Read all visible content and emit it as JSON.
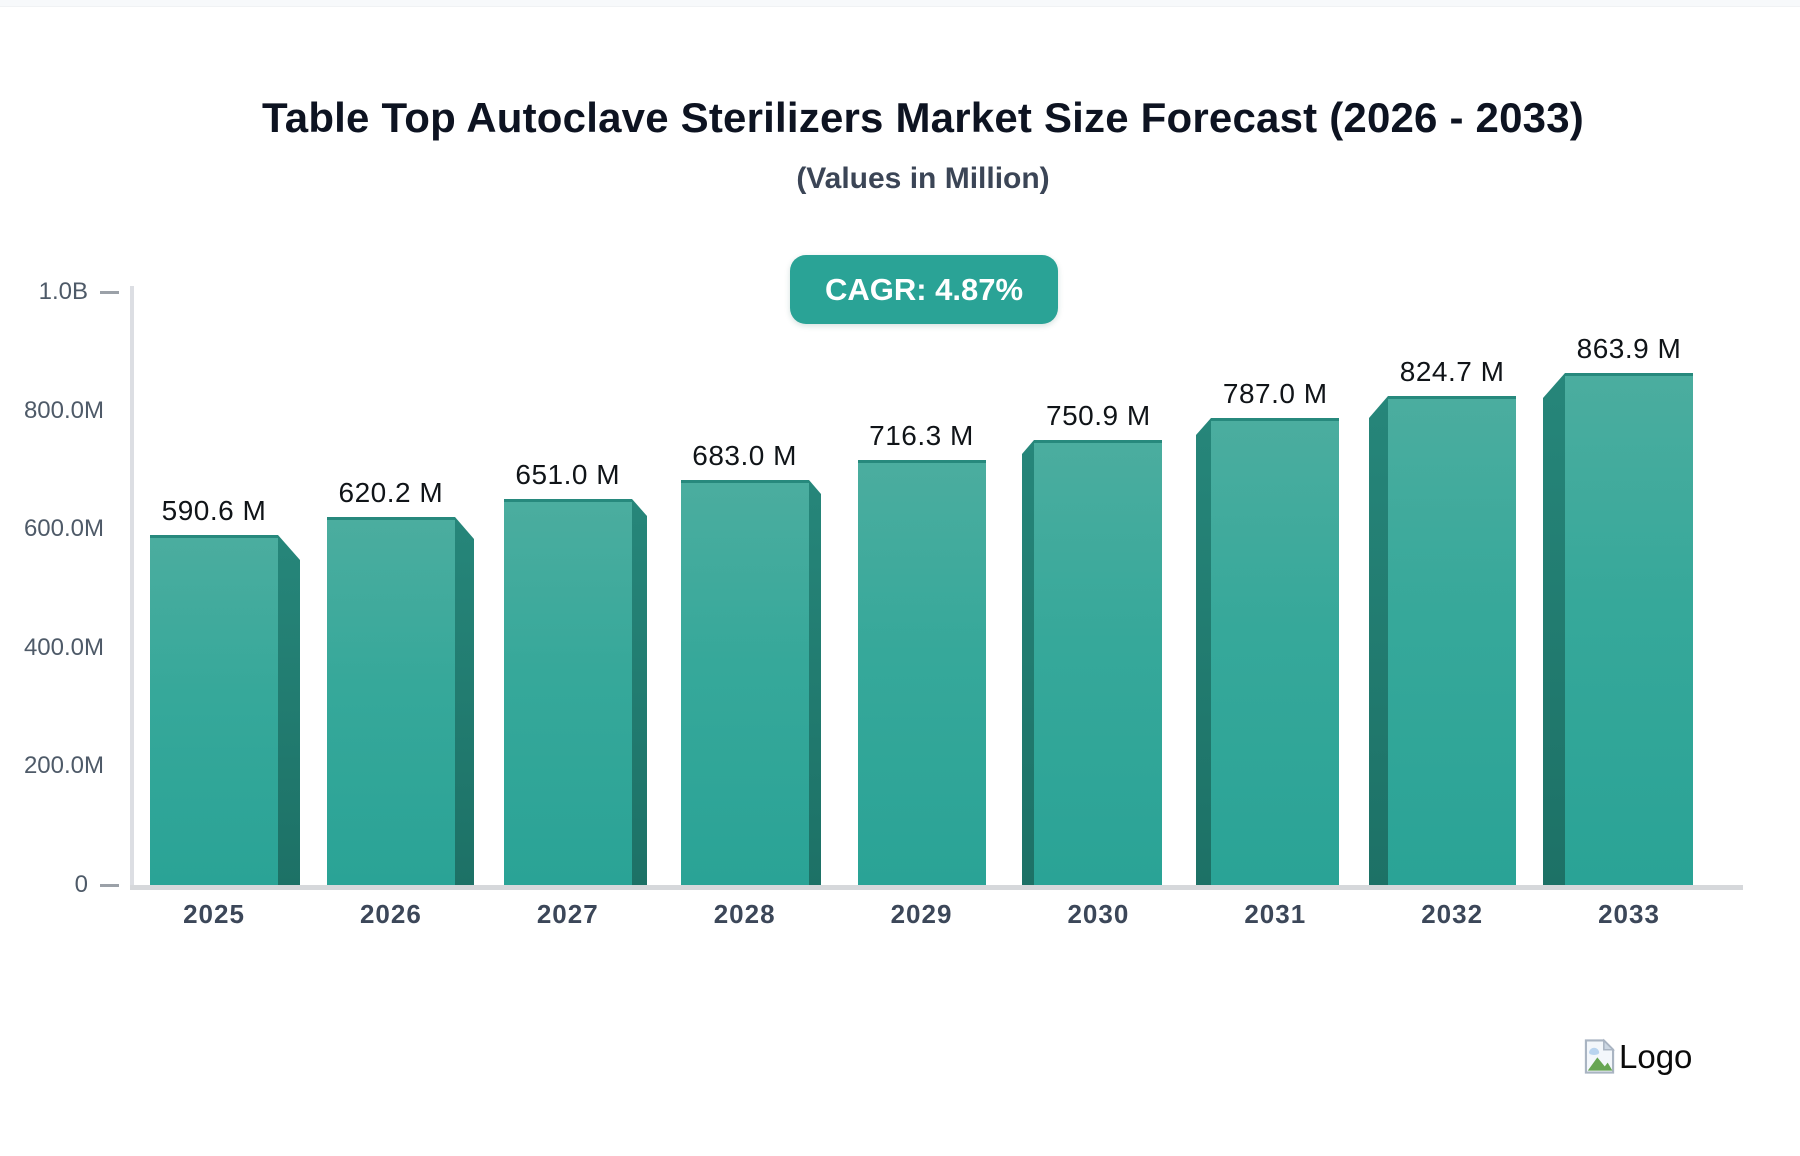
{
  "header": {
    "title": "Table Top Autoclave Sterilizers Market Size Forecast (2026 - 2033)",
    "subtitle": "(Values in Million)",
    "cagr_badge": "CAGR: 4.87%"
  },
  "footer": {
    "logo_text": "Logo"
  },
  "colors": {
    "accent_teal": "#2aa396",
    "bar_front_top": "#4bad9f",
    "bar_front_bottom": "#2aa396",
    "bar_side": "#1f7a70",
    "axis_line": "#d6d8db",
    "y_label": "#4e5a68",
    "x_label": "#3c4759",
    "value_label": "#101418",
    "badge_text": "#ffffff"
  },
  "chart_data": {
    "type": "bar",
    "title": "Table Top Autoclave Sterilizers Market Size Forecast (2026 - 2033)",
    "subtitle": "(Values in Million)",
    "annotation": "CAGR: 4.87%",
    "cagr_percent": 4.87,
    "unit": "Million USD",
    "categories": [
      "2025",
      "2026",
      "2027",
      "2028",
      "2029",
      "2030",
      "2031",
      "2032",
      "2033"
    ],
    "values": [
      590.6,
      620.2,
      651.0,
      683.0,
      716.3,
      750.9,
      787.0,
      824.7,
      863.9
    ],
    "value_labels": [
      "590.6 M",
      "620.2 M",
      "651.0 M",
      "683.0 M",
      "716.3 M",
      "750.9 M",
      "787.0 M",
      "824.7 M",
      "863.9 M"
    ],
    "ylim": [
      0,
      1000
    ],
    "grid": false,
    "legend": false,
    "y_axis_ticks": [
      {
        "label": "1.0B",
        "value": 1000,
        "dash": true
      },
      {
        "label": "800.0M",
        "value": 800,
        "dash": false
      },
      {
        "label": "600.0M",
        "value": 600,
        "dash": false
      },
      {
        "label": "400.0M",
        "value": 400,
        "dash": false
      },
      {
        "label": "200.0M",
        "value": 200,
        "dash": false
      },
      {
        "label": "0",
        "value": 0,
        "dash": true
      }
    ]
  }
}
